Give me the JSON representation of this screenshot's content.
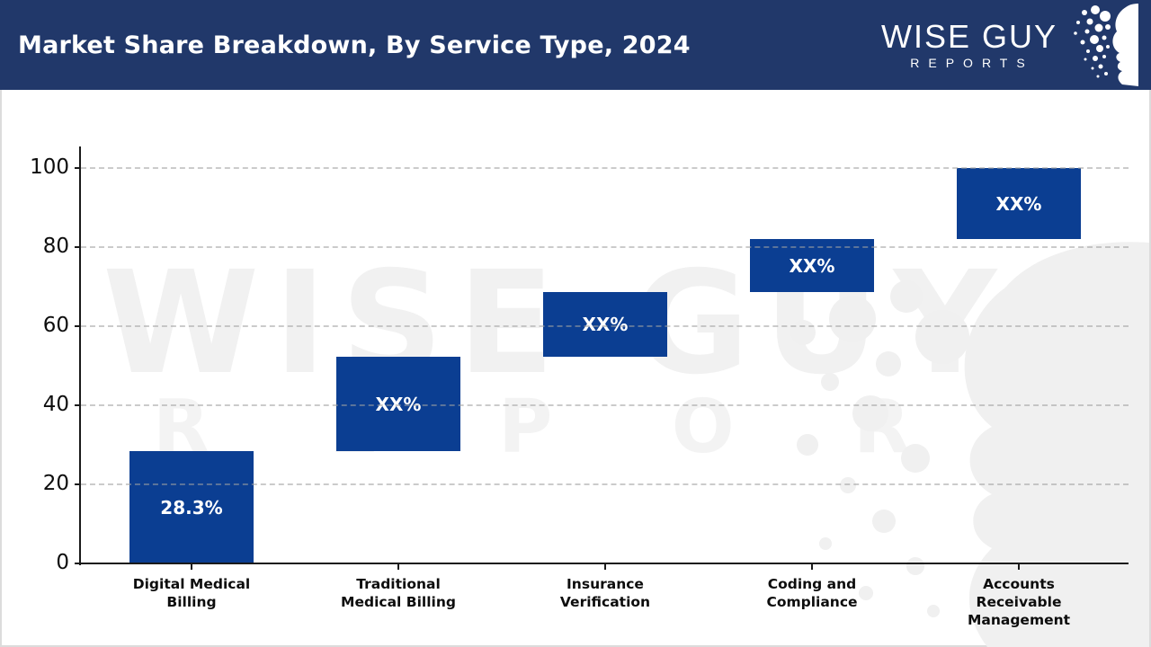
{
  "header": {
    "title": "Market Share Breakdown, By Service Type, 2024",
    "bg_color": "#21386a",
    "logo": {
      "line1": "WISE GUY",
      "line2": "REPORTS"
    }
  },
  "watermark": {
    "line1": "WISE GUY",
    "line2": "R E P O R T S"
  },
  "chart_data": {
    "type": "bar",
    "subtype": "waterfall",
    "title": "Market Share Breakdown, By Service Type, 2024",
    "xlabel": "",
    "ylabel": "",
    "ylim": [
      0,
      105
    ],
    "yticks": [
      0,
      20,
      40,
      60,
      80,
      100
    ],
    "grid": "dashed horizontal, drawn over bars",
    "legend": "none",
    "bar_color": "#0b3e92",
    "categories": [
      "Digital Medical Billing",
      "Traditional Medical Billing",
      "Insurance Verification",
      "Coding and Compliance",
      "Accounts Receivable Management"
    ],
    "segments": [
      {
        "category_lines": [
          "Digital Medical",
          "Billing"
        ],
        "start": 0,
        "end": 28.3,
        "value": 28.3,
        "value_label": "28.3%"
      },
      {
        "category_lines": [
          "Traditional",
          "Medical Billing"
        ],
        "start": 28.3,
        "end": 52.3,
        "value": 24.0,
        "value_label": "XX%"
      },
      {
        "category_lines": [
          "Insurance",
          "Verification"
        ],
        "start": 52.3,
        "end": 68.6,
        "value": 16.3,
        "value_label": "XX%"
      },
      {
        "category_lines": [
          "Coding and",
          "Compliance"
        ],
        "start": 68.6,
        "end": 82.0,
        "value": 13.4,
        "value_label": "XX%"
      },
      {
        "category_lines": [
          "Accounts",
          "Receivable",
          "Management"
        ],
        "start": 82.0,
        "end": 100.0,
        "value": 18.0,
        "value_label": "XX%"
      }
    ]
  }
}
